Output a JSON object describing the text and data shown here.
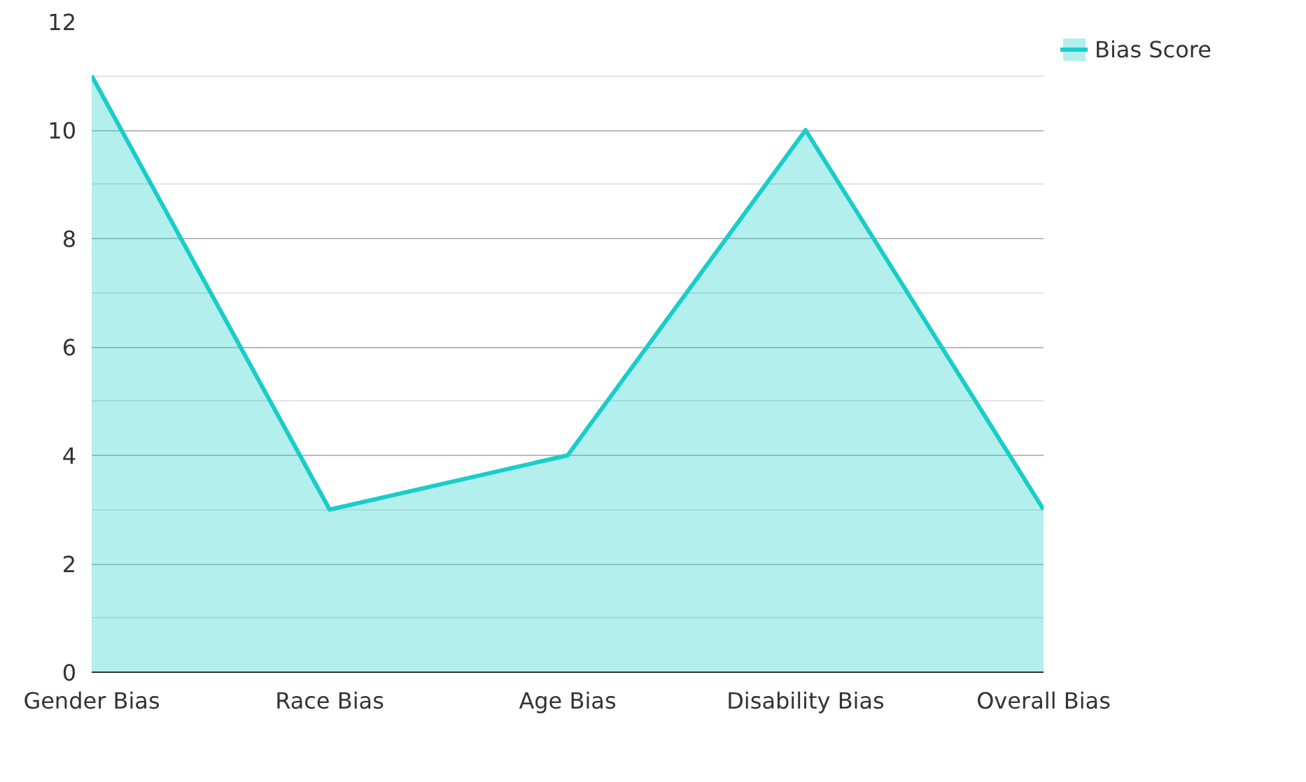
{
  "chart_data": {
    "type": "area",
    "categories": [
      "Gender Bias",
      "Race Bias",
      "Age Bias",
      "Disability Bias",
      "Overall Bias"
    ],
    "series": [
      {
        "name": "Bias Score",
        "color": "#19cdc8",
        "values": [
          11,
          3,
          4,
          10,
          3
        ]
      }
    ],
    "ylim": [
      0,
      12
    ],
    "yticks": [
      0,
      2,
      4,
      6,
      8,
      10,
      12
    ],
    "grid": "y",
    "legend": "top right"
  }
}
